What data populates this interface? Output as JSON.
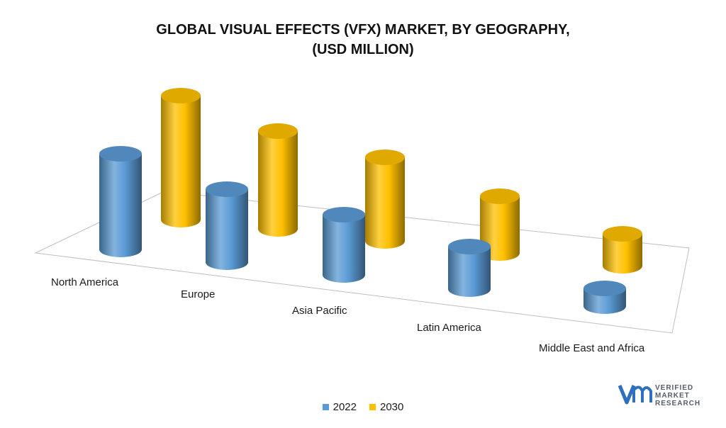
{
  "title_line1": "GLOBAL VISUAL EFFECTS (VFX) MARKET, BY GEOGRAPHY,",
  "title_line2": "(USD MILLION)",
  "logo": {
    "line1": "VERIFIED",
    "line2": "MARKET",
    "line3": "RESEARCH",
    "mark": "vmr",
    "registered": "®"
  },
  "chart_data": {
    "type": "bar",
    "subtype": "3d-cylinder",
    "categories": [
      "North America",
      "Europe",
      "Asia Pacific",
      "Latin America",
      "Middle East and Africa"
    ],
    "series": [
      {
        "name": "2022",
        "color": "#5b9bd5",
        "values": [
          135,
          103,
          85,
          60,
          25
        ]
      },
      {
        "name": "2030",
        "color": "#ffc000",
        "values": [
          175,
          138,
          118,
          80,
          45
        ]
      }
    ],
    "legend": "bottom",
    "grid": false,
    "ylim": [
      0,
      200
    ]
  }
}
